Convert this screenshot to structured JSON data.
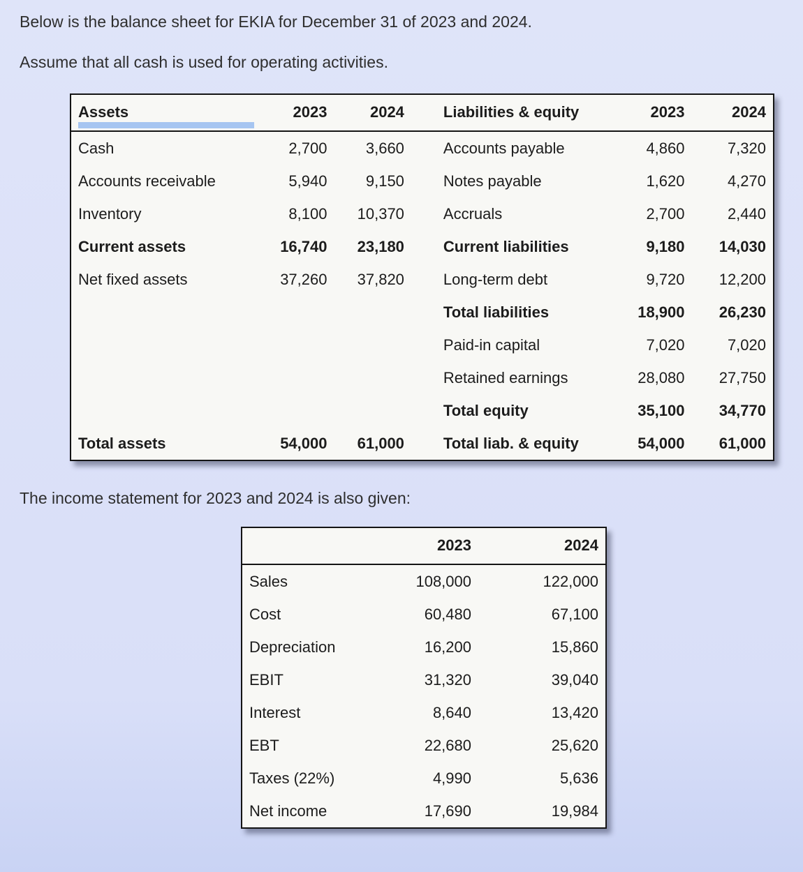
{
  "page": {
    "intro_line1": "Below is the balance sheet for EKIA for December 31 of 2023 and 2024.",
    "intro_line2": "Assume that all cash is used for operating activities.",
    "income_intro": "The income statement for 2023 and 2024 is also given:"
  },
  "colors": {
    "page_background": "#dce2f8",
    "table_background": "#f8f8f5",
    "table_border": "#141414",
    "assets_highlight": "#a6c5f1"
  },
  "balance_sheet": {
    "headers": {
      "assets": "Assets",
      "liabilities": "Liabilities & equity",
      "year_2023": "2023",
      "year_2024": "2024"
    },
    "rows": [
      {
        "left": [
          "Cash",
          "2,700",
          "3,660"
        ],
        "left_bold": false,
        "right": [
          "Accounts payable",
          "4,860",
          "7,320"
        ],
        "right_bold": false
      },
      {
        "left": [
          "Accounts receivable",
          "5,940",
          "9,150"
        ],
        "left_bold": false,
        "right": [
          "Notes payable",
          "1,620",
          "4,270"
        ],
        "right_bold": false
      },
      {
        "left": [
          "Inventory",
          "8,100",
          "10,370"
        ],
        "left_bold": false,
        "right": [
          "Accruals",
          "2,700",
          "2,440"
        ],
        "right_bold": false
      },
      {
        "left": [
          "Current assets",
          "16,740",
          "23,180"
        ],
        "left_bold": true,
        "right": [
          "Current liabilities",
          "9,180",
          "14,030"
        ],
        "right_bold": true
      },
      {
        "left": [
          "Net fixed assets",
          "37,260",
          "37,820"
        ],
        "left_bold": false,
        "right": [
          "Long-term debt",
          "9,720",
          "12,200"
        ],
        "right_bold": false
      },
      {
        "left": [
          "",
          "",
          ""
        ],
        "left_bold": false,
        "right": [
          "Total liabilities",
          "18,900",
          "26,230"
        ],
        "right_bold": true
      },
      {
        "left": [
          "",
          "",
          ""
        ],
        "left_bold": false,
        "right": [
          "Paid-in capital",
          "7,020",
          "7,020"
        ],
        "right_bold": false
      },
      {
        "left": [
          "",
          "",
          ""
        ],
        "left_bold": false,
        "right": [
          "Retained earnings",
          "28,080",
          "27,750"
        ],
        "right_bold": false
      },
      {
        "left": [
          "",
          "",
          ""
        ],
        "left_bold": false,
        "right": [
          "Total equity",
          "35,100",
          "34,770"
        ],
        "right_bold": true
      },
      {
        "left": [
          "Total assets",
          "54,000",
          "61,000"
        ],
        "left_bold": true,
        "right": [
          "Total liab. & equity",
          "54,000",
          "61,000"
        ],
        "right_bold": true
      }
    ]
  },
  "income_statement": {
    "headers": {
      "year_2023": "2023",
      "year_2024": "2024"
    },
    "rows": [
      {
        "label": "Sales",
        "y2023": "108,000",
        "y2024": "122,000"
      },
      {
        "label": "Cost",
        "y2023": "60,480",
        "y2024": "67,100"
      },
      {
        "label": "Depreciation",
        "y2023": "16,200",
        "y2024": "15,860"
      },
      {
        "label": "EBIT",
        "y2023": "31,320",
        "y2024": "39,040"
      },
      {
        "label": "Interest",
        "y2023": "8,640",
        "y2024": "13,420"
      },
      {
        "label": "EBT",
        "y2023": "22,680",
        "y2024": "25,620"
      },
      {
        "label": "Taxes (22%)",
        "y2023": "4,990",
        "y2024": "5,636"
      },
      {
        "label": "Net income",
        "y2023": "17,690",
        "y2024": "19,984"
      }
    ]
  }
}
